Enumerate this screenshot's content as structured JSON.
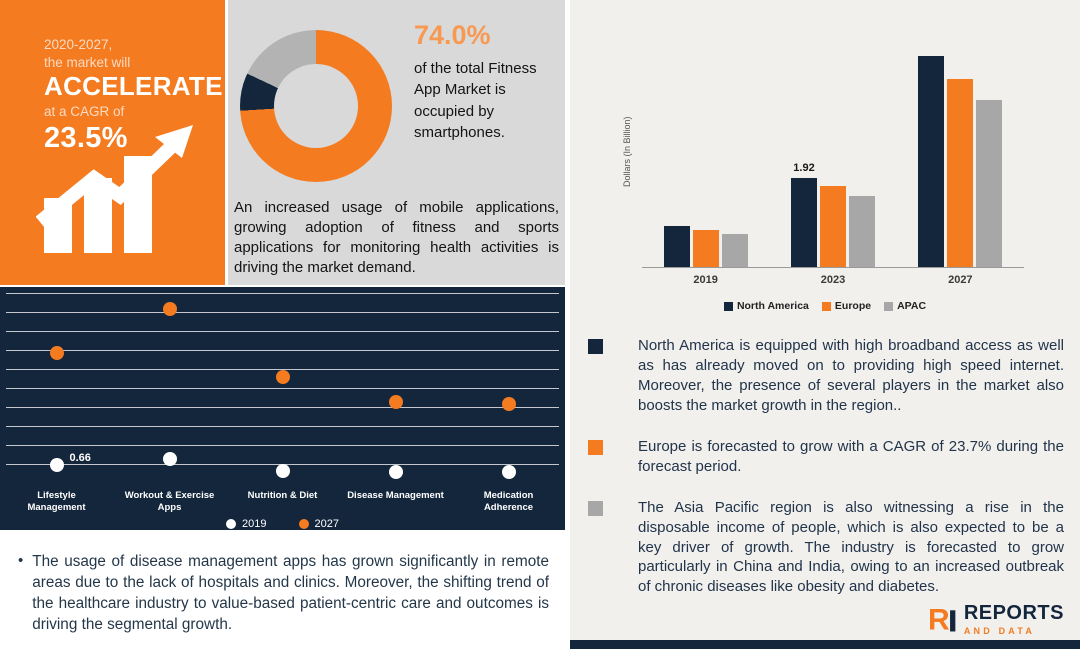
{
  "colors": {
    "orange": "#F47B20",
    "navy": "#14263C",
    "apac_gray": "#A7A7A7",
    "donut_gray": "#B3B3B3",
    "panel_gray": "#D9D9D9",
    "right_panel_bg": "#F1F0ED"
  },
  "cagr_panel": {
    "period": "2020-2027,",
    "lead_in": "the market will",
    "keyword": "ACCELERATE",
    "cagr_lead": "at a CAGR of",
    "cagr_value": "23.5%"
  },
  "donut_section": {
    "headline": "74.0%",
    "headline_color": "#F79952",
    "caption": "of the total Fitness App Market is occupied by smartphones.",
    "paragraph": "An increased usage of mobile applications, growing adoption of fitness and sports applications for monitoring health activities is driving the market demand."
  },
  "bottom_left": {
    "marker": "•",
    "note": "The usage of disease management apps has grown significantly in remote areas due to the lack of hospitals and clinics. Moreover, the shifting trend of the healthcare industry to value-based patient-centric care and outcomes is driving the segmental growth."
  },
  "right_panel": {
    "bullets": [
      {
        "color": "#14263C",
        "text": "North America is equipped with high broadband access as well as has already moved on to providing high speed internet. Moreover, the presence of several players in the market also boosts the market growth in the region.."
      },
      {
        "color": "#F47B20",
        "text": "Europe is forecasted to grow with a CAGR of 23.7% during the forecast period."
      },
      {
        "color": "#A7A7A7",
        "text": "The Asia Pacific region is also witnessing a rise in the disposable income of people, which is also expected to be a key driver of growth. The industry is forecasted to grow particularly in China and India, owing to an increased outbreak of chronic diseases like obesity and diabetes."
      }
    ]
  },
  "logo": {
    "name": "REPORTS",
    "subtitle": "AND DATA"
  },
  "chart_data": [
    {
      "type": "pie",
      "donut": true,
      "annotation": "74.0% of the total Fitness App Market is occupied by smartphones.",
      "segments": [
        {
          "label": "Smartphones",
          "value": 74.0,
          "color": "#F47B20"
        },
        {
          "label": "",
          "value": 8.0,
          "color": "#14263C"
        },
        {
          "label": "",
          "value": 18.0,
          "color": "#B3B3B3"
        }
      ]
    },
    {
      "type": "scatter",
      "categories": [
        "Lifestyle Management",
        "Workout & Exercise Apps",
        "Nutrition & Diet",
        "Disease Management",
        "Medication Adherence"
      ],
      "series": [
        {
          "name": "2019",
          "color": "#FFFFFF",
          "values": [
            0.66,
            0.9,
            0.45,
            0.4,
            0.4
          ]
        },
        {
          "name": "2027",
          "color": "#F47B20",
          "values": [
            4.8,
            6.4,
            3.9,
            3.0,
            2.9
          ]
        }
      ],
      "data_labels": [
        {
          "series": "2019",
          "category": "Lifestyle Management",
          "text": "0.66"
        }
      ],
      "ylim": [
        0,
        7
      ],
      "grid": true,
      "legend_position": "bottom"
    },
    {
      "type": "bar",
      "categories": [
        "2019",
        "2023",
        "2027"
      ],
      "series": [
        {
          "name": "North America",
          "color": "#14263C",
          "values": [
            0.88,
            1.92,
            4.55
          ]
        },
        {
          "name": "Europe",
          "color": "#F47B20",
          "values": [
            0.8,
            1.75,
            4.05
          ]
        },
        {
          "name": "APAC",
          "color": "#A7A7A7",
          "values": [
            0.72,
            1.52,
            3.6
          ]
        }
      ],
      "ylabel": "Dollars (In Billion)",
      "data_labels": [
        {
          "series": "North America",
          "category": "2023",
          "text": "1.92"
        }
      ],
      "ylim": [
        0,
        5
      ],
      "legend_position": "bottom"
    }
  ]
}
